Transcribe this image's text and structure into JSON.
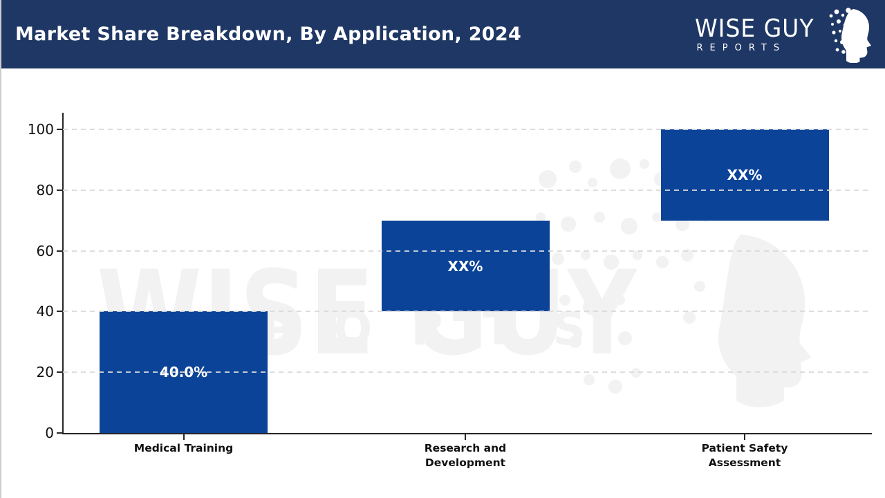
{
  "header": {
    "title": "Market Share Breakdown, By Application, 2024",
    "logo": {
      "line1": "WISE GUY",
      "line2": "REPORTS"
    }
  },
  "watermark": {
    "line1": "WISE GUY",
    "line2": "REPORTS"
  },
  "chart_data": {
    "type": "bar",
    "subtype": "floating-segment (waterfall-style market share)",
    "title": "Market Share Breakdown, By Application, 2024",
    "categories": [
      "Medical Training",
      "Research and\nDevelopment",
      "Patient Safety\nAssessment"
    ],
    "bars": [
      {
        "category": "Medical Training",
        "start": 0,
        "end": 40,
        "label": "40.0%"
      },
      {
        "category": "Research and Development",
        "start": 40,
        "end": 70,
        "label": "XX%"
      },
      {
        "category": "Patient Safety Assessment",
        "start": 70,
        "end": 100,
        "label": "XX%"
      }
    ],
    "yticks": [
      0,
      20,
      40,
      60,
      80,
      100
    ],
    "ylim": [
      0,
      105.5
    ],
    "xlabel": "",
    "ylabel": "",
    "grid": "horizontal-dashed",
    "legend": "none",
    "colors": {
      "bar": "#0b4398",
      "bar_label": "#ffffff",
      "header_bg": "#1f3764",
      "axis": "#262626",
      "gridline": "#d9d9d9",
      "watermark": "#f2f2f2"
    }
  }
}
